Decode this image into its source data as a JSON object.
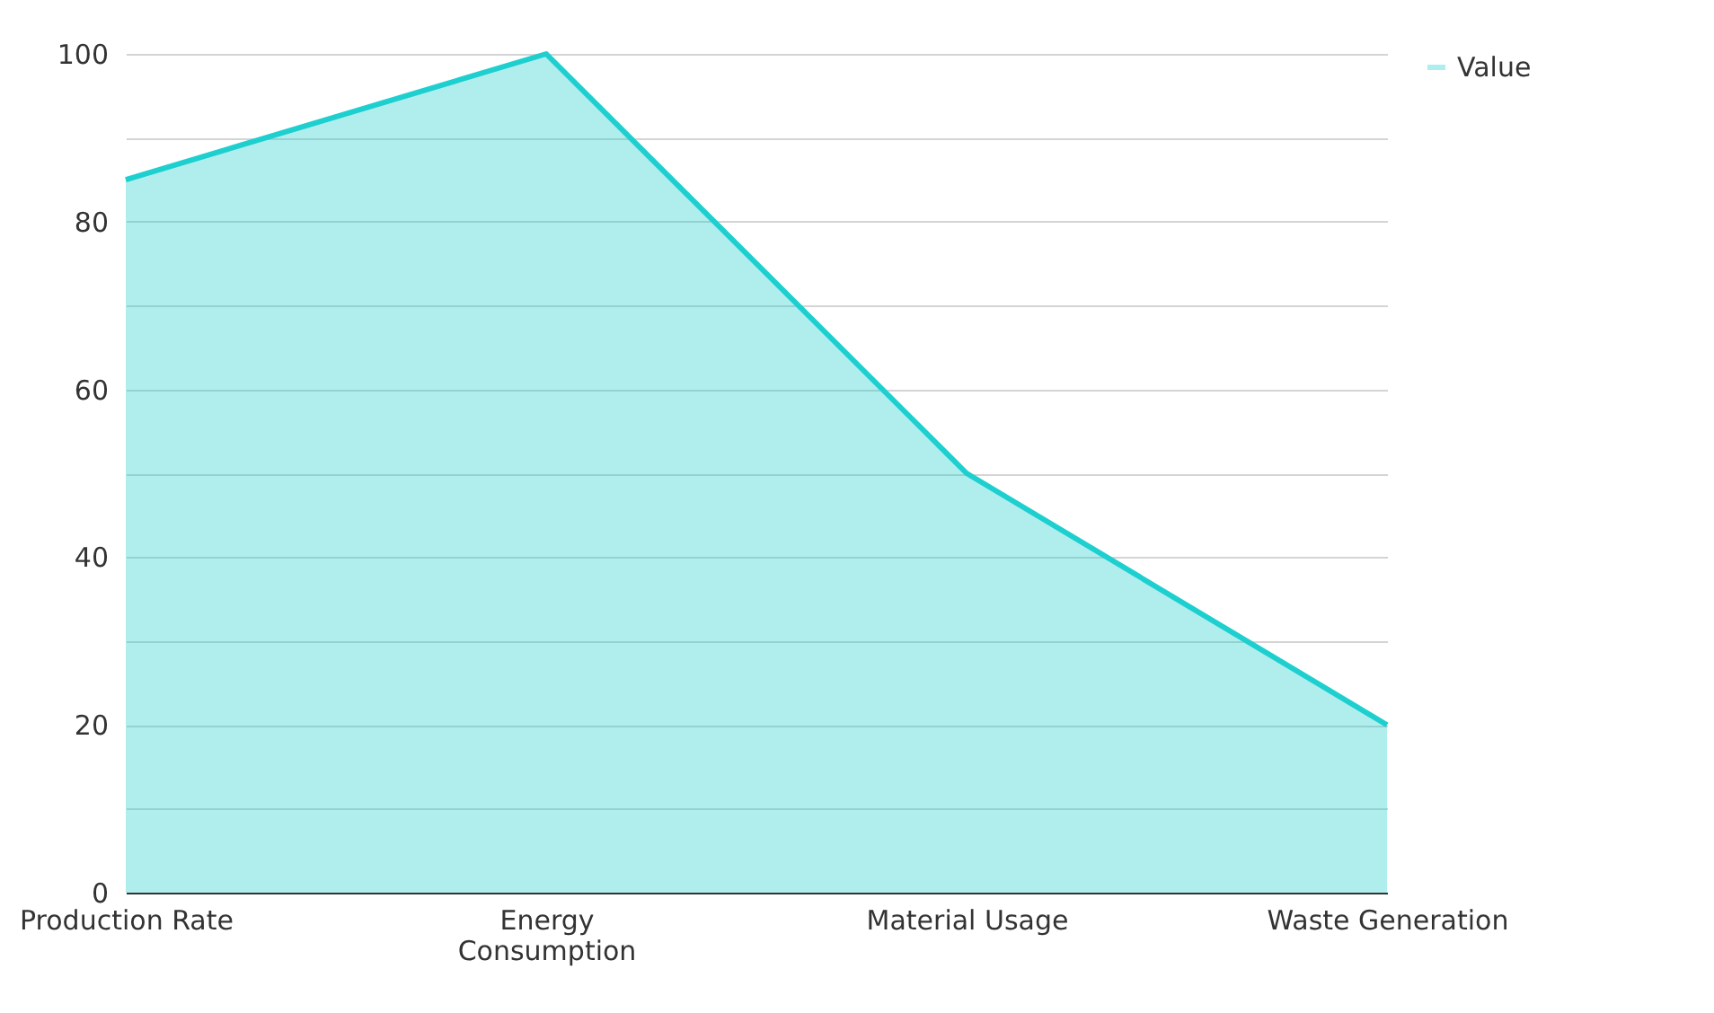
{
  "chart_data": {
    "type": "area",
    "categories": [
      "Production Rate",
      "Energy Consumption",
      "Material Usage",
      "Waste Generation"
    ],
    "series": [
      {
        "name": "Value",
        "color": "#1ecfcf",
        "values": [
          85,
          100,
          50,
          20
        ]
      }
    ],
    "ylim": [
      0,
      100
    ],
    "yticks": [
      0,
      {
        "value": 10,
        "label": null
      },
      20,
      {
        "value": 30,
        "label": null
      },
      40,
      {
        "value": 50,
        "label": null
      },
      60,
      {
        "value": 70,
        "label": null
      },
      80,
      {
        "value": 90,
        "label": null
      },
      100
    ],
    "grid": "y",
    "legend": "top right"
  }
}
